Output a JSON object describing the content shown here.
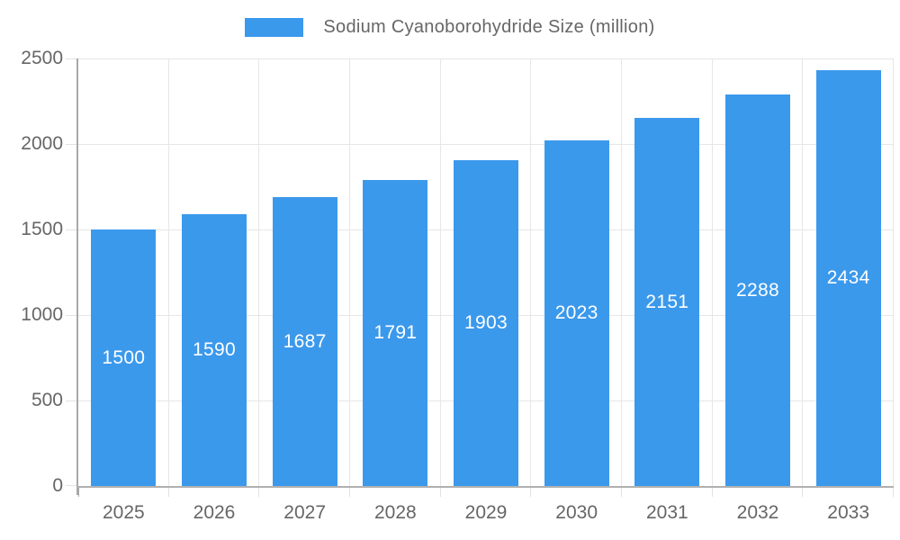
{
  "legend": {
    "label": "Sodium Cyanoborohydride Size (million)"
  },
  "colors": {
    "bar": "#3b99ec",
    "bar_label": "#ffffff",
    "grid": "#e6e6e6",
    "tick": "#e2e2e2",
    "axis": "#a8a8a8",
    "text": "#666666",
    "background": "#ffffff"
  },
  "chart_data": {
    "type": "bar",
    "title": "",
    "legend_entries": [
      "Sodium Cyanoborohydride Size (million)"
    ],
    "legend_position": "top",
    "categories": [
      "2025",
      "2026",
      "2027",
      "2028",
      "2029",
      "2030",
      "2031",
      "2032",
      "2033"
    ],
    "values": [
      1500,
      1590,
      1687,
      1791,
      1903,
      2023,
      2151,
      2288,
      2434
    ],
    "bar_value_labels_shown": true,
    "xlabel": "",
    "ylabel": "",
    "ylim": [
      0,
      2500
    ],
    "yticks": [
      0,
      500,
      1000,
      1500,
      2000,
      2500
    ],
    "grid": true
  }
}
